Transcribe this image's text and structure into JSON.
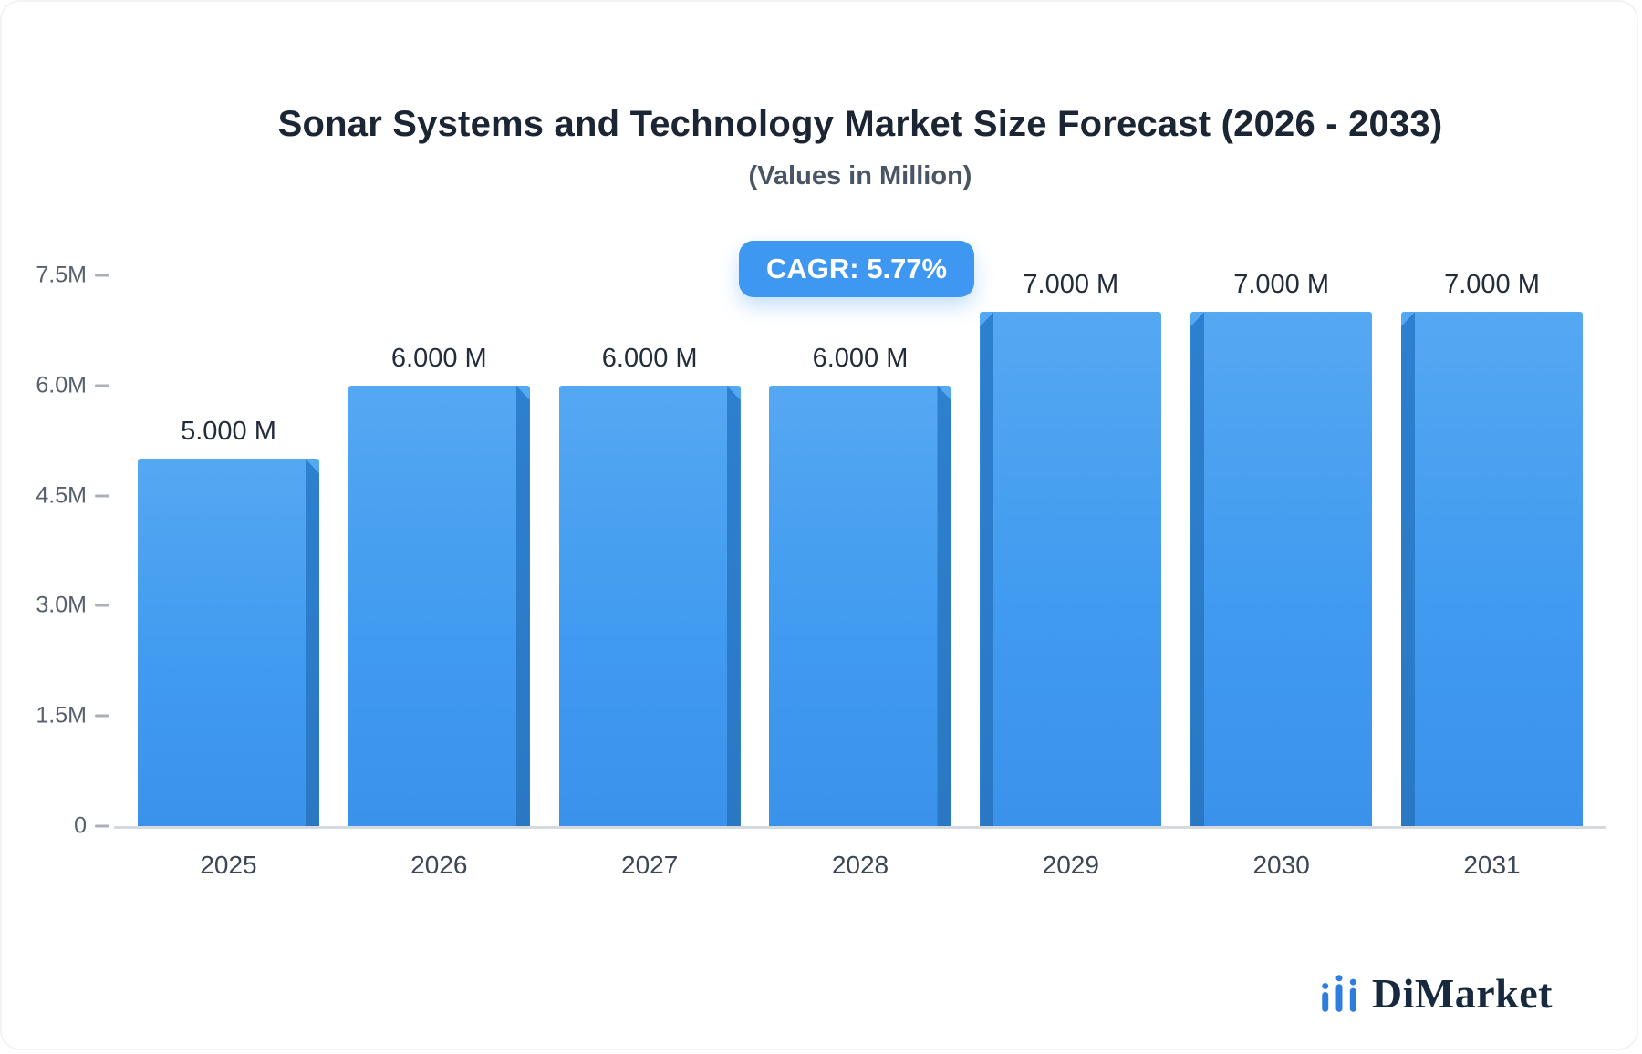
{
  "header": {
    "title": "Sonar Systems and Technology Market Size Forecast (2026 - 2033)",
    "subtitle": "(Values in Million)"
  },
  "cagr_badge": "CAGR: 5.77%",
  "brand": {
    "name": "DiMarket",
    "icon": "bar-chart-icon"
  },
  "chart_data": {
    "type": "bar",
    "title": "Sonar Systems and Technology Market Size Forecast (2026 - 2033)",
    "subtitle": "(Values in Million)",
    "unit": "Million",
    "categories": [
      "2025",
      "2026",
      "2027",
      "2028",
      "2029",
      "2030",
      "2031"
    ],
    "values": [
      5.0,
      6.0,
      6.0,
      6.0,
      7.0,
      7.0,
      7.0
    ],
    "value_labels": [
      "5.000 M",
      "6.000 M",
      "6.000 M",
      "6.000 M",
      "7.000 M",
      "7.000 M",
      "7.000 M"
    ],
    "ylim": [
      0,
      7.5
    ],
    "yticks": [
      {
        "value": 0,
        "label": "0"
      },
      {
        "value": 1.5,
        "label": "1.5M"
      },
      {
        "value": 3.0,
        "label": "3.0M"
      },
      {
        "value": 4.5,
        "label": "4.5M"
      },
      {
        "value": 6.0,
        "label": "6.0M"
      },
      {
        "value": 7.5,
        "label": "7.5M"
      }
    ],
    "xlabel": "",
    "ylabel": "",
    "grid": "off",
    "legend": "none",
    "bar_color": "#419bf0",
    "bar_edge_color": "#2a7ac6",
    "annotations": [
      "CAGR: 5.77%"
    ]
  }
}
